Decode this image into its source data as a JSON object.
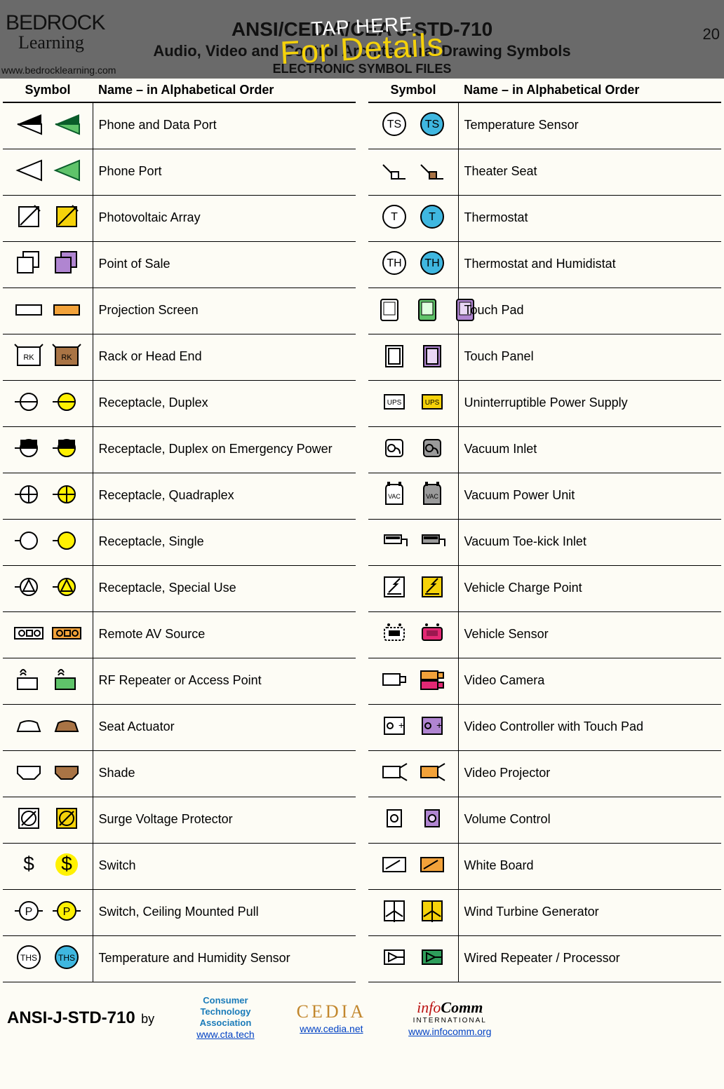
{
  "header": {
    "logo_top": "BEDROCK",
    "logo_bottom": "Learning",
    "url": "www.bedrocklearning.com",
    "title_main": "ANSI/CEDIA/CEA J-STD-710",
    "title_sub": "Audio, Video and Control Architectural Drawing Symbols",
    "title_sub2": "ELECTRONIC SYMBOL FILES",
    "page": "20",
    "overlay_tap": "TAP HERE",
    "overlay_details": "For Details"
  },
  "table_headers": {
    "symbol": "Symbol",
    "name": "Name – in Alphabetical Order"
  },
  "colors": {
    "overlay_bg": "#6a6a6a",
    "yellow": "#f5d20a",
    "green": "#5fc36a",
    "orange": "#f2a23a",
    "purple": "#b085d1",
    "cyan": "#3fb7e0",
    "magenta": "#e32874",
    "grey": "#9a9a9a",
    "darkgreen": "#2e9e5b",
    "brown": "#a97445",
    "ltyellow": "#fff102"
  },
  "left": [
    {
      "name": "Phone and Data Port",
      "sym": "halftri",
      "c2": "#5fc36a"
    },
    {
      "name": "Phone Port",
      "sym": "tri",
      "c2": "#5fc36a"
    },
    {
      "name": "Photovoltaic Array",
      "sym": "sq-diag",
      "c2": "#f5d20a"
    },
    {
      "name": "Point of Sale",
      "sym": "dbl-sq",
      "c2": "#b085d1"
    },
    {
      "name": "Projection Screen",
      "sym": "bar",
      "c2": "#f2a23a"
    },
    {
      "name": "Rack or Head End",
      "sym": "rk",
      "txt": "RK",
      "c2": "#a97445"
    },
    {
      "name": "Receptacle, Duplex",
      "sym": "recept-d",
      "c2": "#fff102"
    },
    {
      "name": "Receptacle, Duplex on Emergency Power",
      "sym": "recept-de",
      "c2": "#fff102"
    },
    {
      "name": "Receptacle, Quadraplex",
      "sym": "recept-q",
      "c2": "#fff102"
    },
    {
      "name": "Receptacle, Single",
      "sym": "recept-s",
      "c2": "#fff102"
    },
    {
      "name": "Receptacle, Special Use",
      "sym": "recept-sp",
      "c2": "#fff102"
    },
    {
      "name": "Remote AV Source",
      "sym": "ooo",
      "c2": "#f2a23a"
    },
    {
      "name": "RF Repeater or Access Point",
      "sym": "rf",
      "c2": "#5fc36a"
    },
    {
      "name": "Seat Actuator",
      "sym": "seat",
      "c2": "#a97445"
    },
    {
      "name": "Shade",
      "sym": "shade",
      "c2": "#a97445"
    },
    {
      "name": "Surge Voltage Protector",
      "sym": "svp",
      "c2": "#f5d20a"
    },
    {
      "name": "Switch",
      "sym": "dollar",
      "txt": "$",
      "c2": "#fff102"
    },
    {
      "name": "Switch, Ceiling Mounted Pull",
      "sym": "circ-p",
      "txt": "P",
      "c2": "#fff102"
    },
    {
      "name": "Temperature and Humidity Sensor",
      "sym": "circ",
      "txt": "THS",
      "c2": "#3fb7e0"
    }
  ],
  "right": [
    {
      "name": "Temperature Sensor",
      "sym": "circ",
      "txt": "TS",
      "c2": "#3fb7e0"
    },
    {
      "name": "Theater Seat",
      "sym": "tseat",
      "c2": "#a97445"
    },
    {
      "name": "Thermostat",
      "sym": "circ",
      "txt": "T",
      "c2": "#3fb7e0"
    },
    {
      "name": "Thermostat and Humidistat",
      "sym": "circ",
      "txt": "TH",
      "c2": "#3fb7e0"
    },
    {
      "name": "Touch Pad",
      "sym": "tpad",
      "c2": "#5fc36a",
      "c3": "#b085d1"
    },
    {
      "name": "Touch Panel",
      "sym": "tpanel",
      "c2": "#b085d1"
    },
    {
      "name": "Uninterruptible Power Supply",
      "sym": "ups",
      "txt": "UPS",
      "c2": "#f5d20a"
    },
    {
      "name": "Vacuum Inlet",
      "sym": "vac-in",
      "c2": "#9a9a9a"
    },
    {
      "name": "Vacuum Power Unit",
      "sym": "vac",
      "txt": "VAC",
      "c2": "#9a9a9a"
    },
    {
      "name": "Vacuum Toe-kick Inlet",
      "sym": "vac-toe",
      "c2": "#9a9a9a"
    },
    {
      "name": "Vehicle Charge Point",
      "sym": "vcp",
      "c2": "#f5d20a"
    },
    {
      "name": "Vehicle Sensor",
      "sym": "vsens",
      "c2": "#e32874"
    },
    {
      "name": "Video Camera",
      "sym": "cam",
      "c2": "#f2a23a",
      "c3": "#e32874"
    },
    {
      "name": "Video Controller with Touch Pad",
      "sym": "vctp",
      "c2": "#b085d1"
    },
    {
      "name": "Video Projector",
      "sym": "proj",
      "c2": "#f2a23a"
    },
    {
      "name": "Volume Control",
      "sym": "vol",
      "c2": "#b085d1"
    },
    {
      "name": "White Board",
      "sym": "wb",
      "c2": "#f2a23a"
    },
    {
      "name": "Wind Turbine Generator",
      "sym": "wind",
      "c2": "#f5d20a"
    },
    {
      "name": "Wired Repeater / Processor",
      "sym": "wrp",
      "c2": "#2e9e5b"
    }
  ],
  "footer": {
    "std": "ANSI-J-STD-710",
    "by": "by",
    "cta_l1": "Consumer",
    "cta_l2": "Technology",
    "cta_l3": "Association",
    "cta_url": "www.cta.tech",
    "cedia": "CEDIA",
    "cedia_url": "www.cedia.net",
    "info_red": "info",
    "info_blk": "Comm",
    "info_intl": "INTERNATIONAL",
    "info_url": "www.infocomm.org"
  }
}
